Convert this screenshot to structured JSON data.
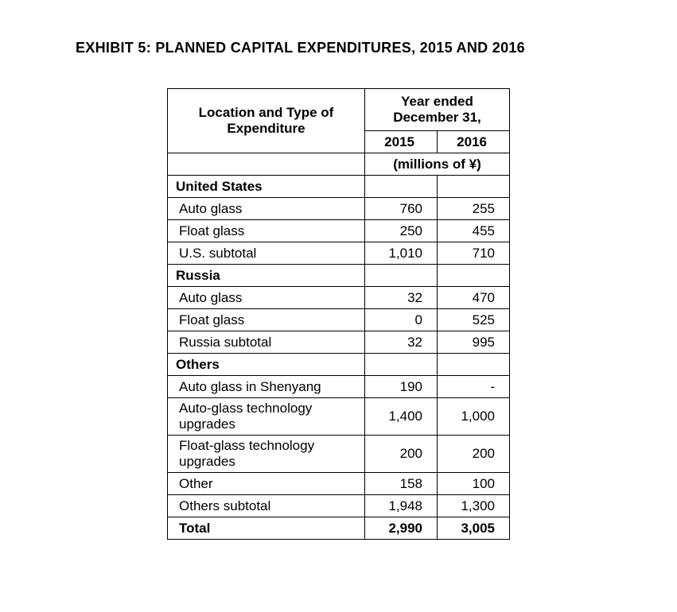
{
  "title": "EXHIBIT 5: PLANNED CAPITAL EXPENDITURES, 2015 AND 2016",
  "header": {
    "col1_line1": "Location and Type of",
    "col1_line2": "Expenditure",
    "col2_line1": "Year ended",
    "col2_line2": "December 31,",
    "y2015": "2015",
    "y2016": "2016",
    "units": "(millions of ¥)"
  },
  "sections": {
    "us": {
      "heading": "United States",
      "autoglass": {
        "label": "Auto glass",
        "v2015": "760",
        "v2016": "255"
      },
      "floatglass": {
        "label": "Float glass",
        "v2015": "250",
        "v2016": "455"
      },
      "subtotal": {
        "label": "U.S. subtotal",
        "v2015": "1,010",
        "v2016": "710"
      }
    },
    "russia": {
      "heading": "Russia",
      "autoglass": {
        "label": "Auto glass",
        "v2015": "32",
        "v2016": "470"
      },
      "floatglass": {
        "label": "Float glass",
        "v2015": "0",
        "v2016": "525"
      },
      "subtotal": {
        "label": "Russia subtotal",
        "v2015": "32",
        "v2016": "995"
      }
    },
    "others": {
      "heading": "Others",
      "shenyang": {
        "label": "Auto glass in Shenyang",
        "v2015": "190",
        "v2016": "-"
      },
      "autoupgrade": {
        "label": "Auto-glass technology upgrades",
        "v2015": "1,400",
        "v2016": "1,000"
      },
      "floatupgrade": {
        "label": "Float-glass technology upgrades",
        "v2015": "200",
        "v2016": "200"
      },
      "other": {
        "label": "Other",
        "v2015": "158",
        "v2016": "100"
      },
      "subtotal": {
        "label": "Others subtotal",
        "v2015": "1,948",
        "v2016": "1,300"
      }
    },
    "total": {
      "label": "Total",
      "v2015": "2,990",
      "v2016": "3,005"
    }
  }
}
